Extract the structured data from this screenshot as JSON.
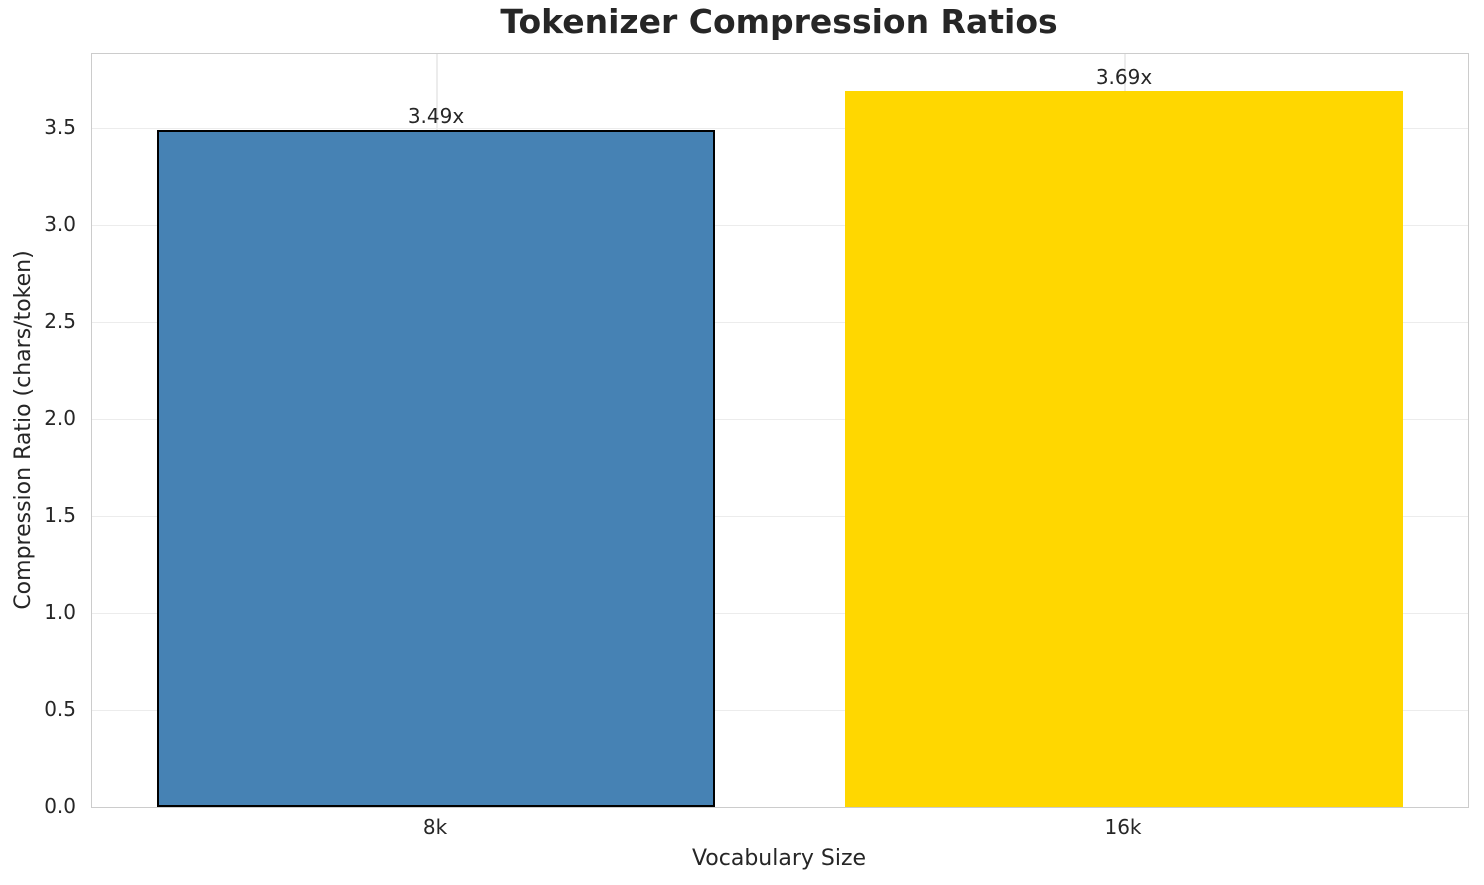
{
  "chart_data": {
    "type": "bar",
    "title": "Tokenizer Compression Ratios",
    "xlabel": "Vocabulary Size",
    "ylabel": "Compression Ratio (chars/token)",
    "categories": [
      "8k",
      "16k"
    ],
    "values": [
      3.49,
      3.69
    ],
    "bar_labels": [
      "3.49x",
      "3.69x"
    ],
    "bar_colors": [
      "#4682b4",
      "#ffd700"
    ],
    "bar_edge_colors": [
      "#000000",
      "none"
    ],
    "bar_edge_width": 2,
    "bar_width_fraction": 0.81,
    "ylim": [
      0,
      3.88
    ],
    "yticks": [
      0,
      0.5,
      1,
      1.5,
      2,
      2.5,
      3,
      3.5
    ],
    "ytick_labels": [
      "0.0",
      "0.5",
      "1.0",
      "1.5",
      "2.0",
      "2.5",
      "3.0",
      "3.5"
    ],
    "grid": "both",
    "legend_position": "none",
    "colors": {
      "grid": "#ececec",
      "spine": "#cccccc",
      "text": "#262626",
      "background": "#ffffff"
    }
  }
}
